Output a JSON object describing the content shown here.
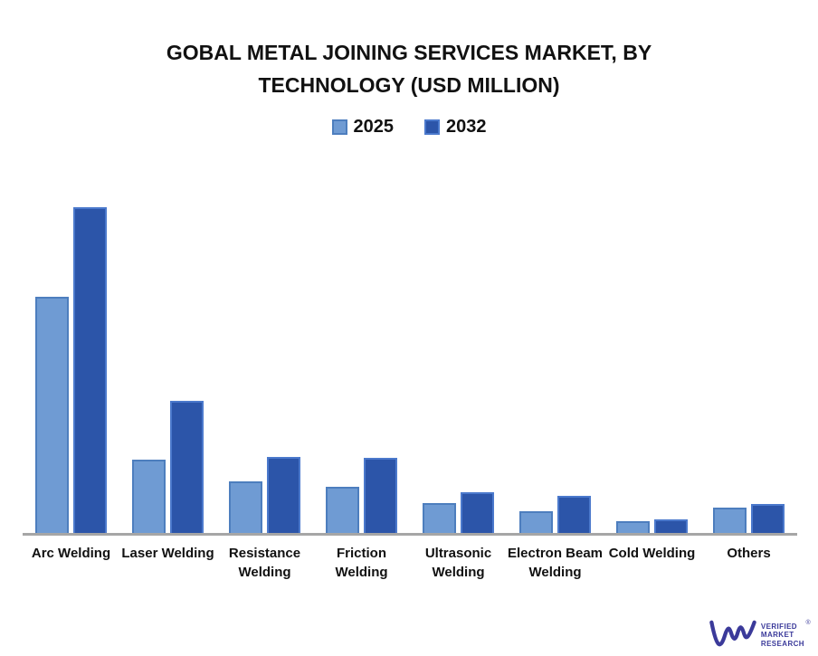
{
  "chart_data": {
    "type": "bar",
    "title": "GOBAL METAL JOINING SERVICES MARKET, BY TECHNOLOGY (USD MILLION)",
    "categories": [
      "Arc Welding",
      "Laser Welding",
      "Resistance Welding",
      "Friction Welding",
      "Ultrasonic Welding",
      "Electron Beam Welding",
      "Cold Welding",
      "Others"
    ],
    "x_tick_labels": [
      "Arc Welding",
      "Laser Welding",
      "Resistance\nWelding",
      "Friction\nWelding",
      "Ultrasonic\nWelding",
      "Electron Beam\nWelding",
      "Cold Welding",
      "Others"
    ],
    "series": [
      {
        "name": "2025",
        "color": "#6f9bd3",
        "border_color": "#4d7ebe",
        "values": [
          262,
          82,
          58,
          52,
          34,
          25,
          14,
          29
        ]
      },
      {
        "name": "2032",
        "color": "#2c55a9",
        "border_color": "#4b79cc",
        "values": [
          361,
          147,
          85,
          84,
          46,
          42,
          16,
          33
        ]
      }
    ],
    "xlabel": "",
    "ylabel": "",
    "ylim": [
      0,
      380
    ],
    "grid": false,
    "legend_position": "top",
    "axis_line_color": "#a6a6a6",
    "background": "#ffffff"
  },
  "branding": {
    "monogram": "VM",
    "lines": [
      "VERIFIED",
      "MARKET",
      "RESEARCH"
    ],
    "registered_mark": "®",
    "color": "#3b3a9a"
  }
}
